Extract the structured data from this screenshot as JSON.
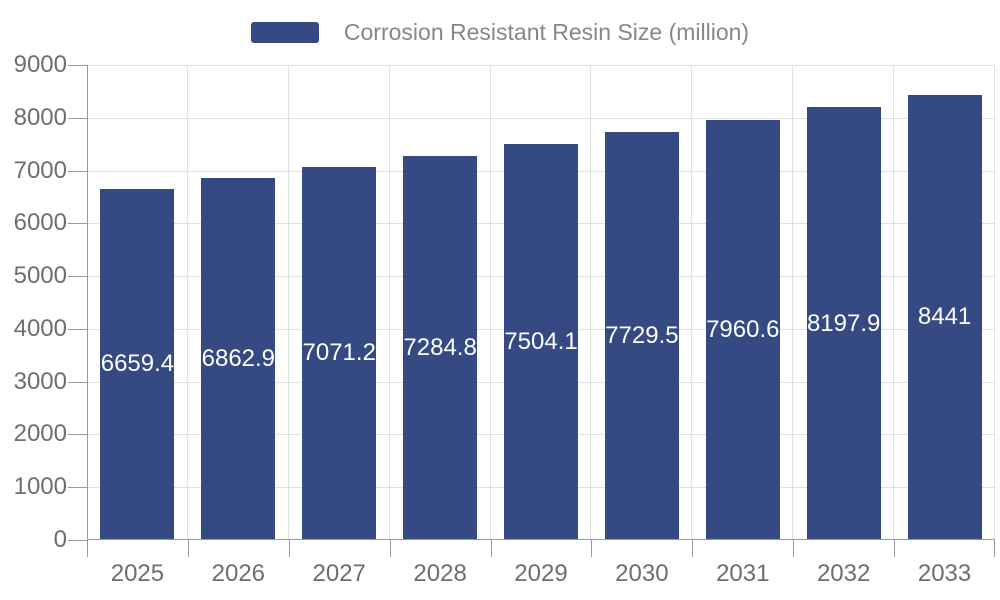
{
  "legend": {
    "label": "Corrosion Resistant Resin Size (million)"
  },
  "chart_data": {
    "type": "bar",
    "title": "Corrosion Resistant Resin Size (million)",
    "categories": [
      "2025",
      "2026",
      "2027",
      "2028",
      "2029",
      "2030",
      "2031",
      "2032",
      "2033"
    ],
    "values": [
      6659.4,
      6862.9,
      7071.2,
      7284.8,
      7504.1,
      7729.5,
      7960.6,
      8197.9,
      8441
    ],
    "value_labels": [
      "6659.4",
      "6862.9",
      "7071.2",
      "7284.8",
      "7504.1",
      "7729.5",
      "7960.6",
      "8197.9",
      "8441"
    ],
    "xlabel": "",
    "ylabel": "",
    "ylim": [
      0,
      9000
    ],
    "yticks": [
      0,
      1000,
      2000,
      3000,
      4000,
      5000,
      6000,
      7000,
      8000,
      9000
    ],
    "grid": true,
    "legend_position": "top",
    "colors": {
      "bar": "#354a83",
      "bar_label": "#ffffff",
      "axis_text": "#6e6e6e",
      "legend_text": "#878787",
      "grid_line": "#e0e0e0",
      "axis_line": "#999999"
    }
  }
}
